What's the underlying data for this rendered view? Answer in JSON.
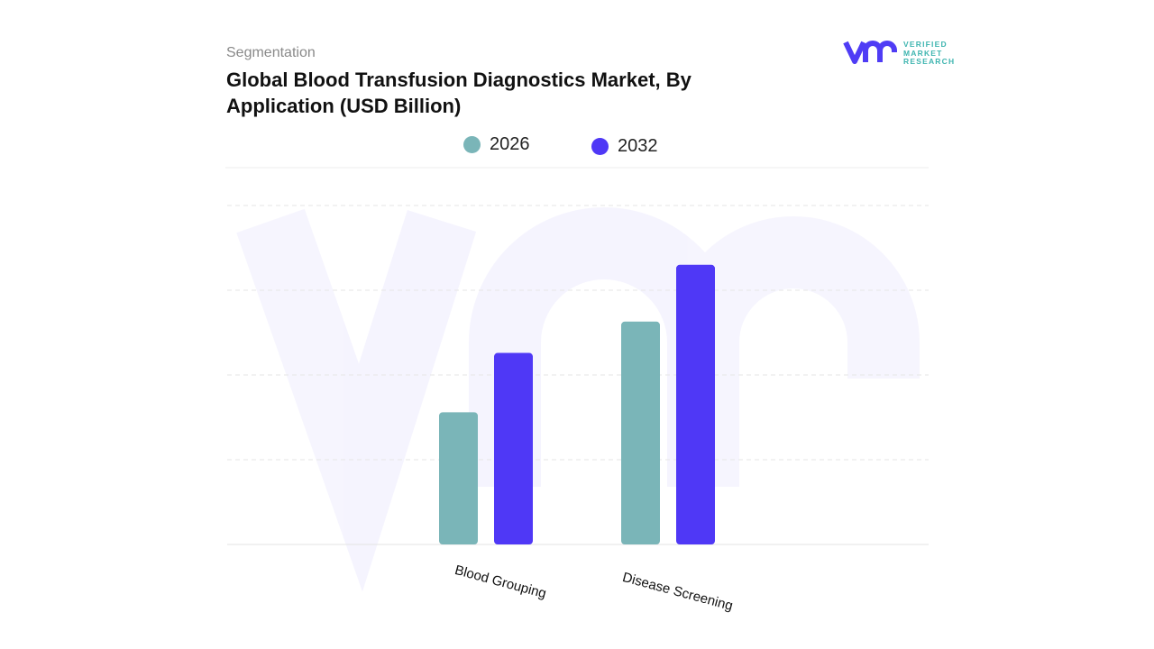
{
  "header": {
    "segment_label": "Segmentation",
    "title": "Global Blood Transfusion Diagnostics Market, By Application (USD Billion)"
  },
  "logo": {
    "mark": "vmr",
    "text": [
      "VERIFIED",
      "MARKET",
      "RESEARCH"
    ],
    "color": "#4f3cf5"
  },
  "chart_data": {
    "type": "bar",
    "title": "Global Blood Transfusion Diagnostics Market, By Application (USD Billion)",
    "categories": [
      "Blood Grouping",
      "Disease Screening"
    ],
    "series": [
      {
        "name": "2026",
        "color": "#7ab5b8",
        "values": [
          1.56,
          2.63
        ]
      },
      {
        "name": "2032",
        "color": "#4f38f6",
        "values": [
          2.26,
          3.3
        ]
      }
    ],
    "xlabel": "",
    "ylabel": "",
    "ylim": [
      0,
      4
    ],
    "grid": true,
    "y_tick_labels_shown": false,
    "legend_position": "top"
  }
}
